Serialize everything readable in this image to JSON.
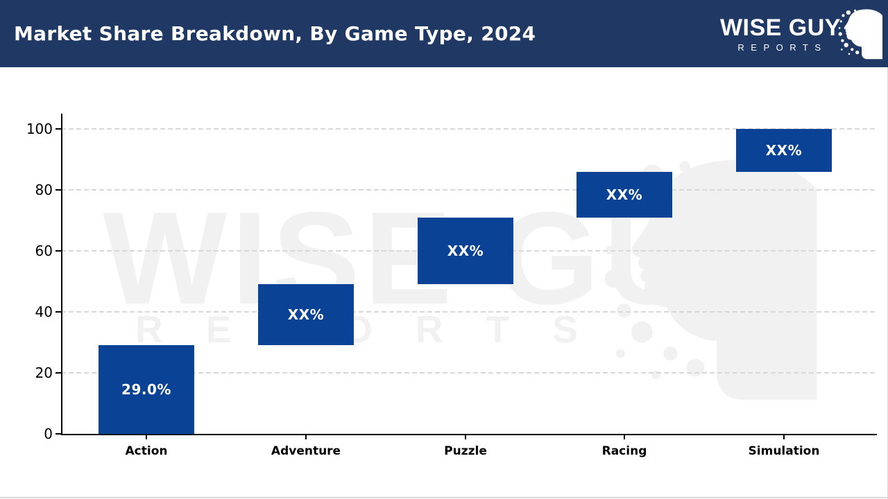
{
  "header": {
    "title": "Market Share Breakdown, By Game Type, 2024",
    "background": "#203864",
    "logo": {
      "brand_line1": "WISE GUY",
      "brand_line2": "REPORTS"
    }
  },
  "watermark": {
    "line1": "WISE GUY",
    "line2": "REPORTS"
  },
  "colors": {
    "header_navy": "#203864",
    "bar_blue": "#0a4296",
    "gridline_gray": "#d8d8d8",
    "watermark_gray": "#f1f1f1",
    "axis_black": "#000000",
    "frame_hairline_gray": "#d9d9d9"
  },
  "chart_data": {
    "type": "bar",
    "subtype": "waterfall",
    "title": "Market Share Breakdown, By Game Type, 2024",
    "categories": [
      "Action",
      "Adventure",
      "Puzzle",
      "Racing",
      "Simulation"
    ],
    "segments": [
      {
        "category": "Action",
        "start": 0,
        "end": 29,
        "value": 29.0,
        "label": "29.0%"
      },
      {
        "category": "Adventure",
        "start": 29,
        "end": 49,
        "value": 20,
        "label": "XX%"
      },
      {
        "category": "Puzzle",
        "start": 49,
        "end": 71,
        "value": 22,
        "label": "XX%"
      },
      {
        "category": "Racing",
        "start": 71,
        "end": 86,
        "value": 15,
        "label": "XX%"
      },
      {
        "category": "Simulation",
        "start": 86,
        "end": 100,
        "value": 14,
        "label": "XX%"
      }
    ],
    "xlabel": "",
    "ylabel": "",
    "ylim": [
      0,
      100
    ],
    "yticks": [
      0,
      20,
      40,
      60,
      80,
      100
    ],
    "grid": "horizontal-dashed",
    "legend": "none",
    "bar_color": "#0a4296",
    "bar_label_color": "#ffffff"
  }
}
